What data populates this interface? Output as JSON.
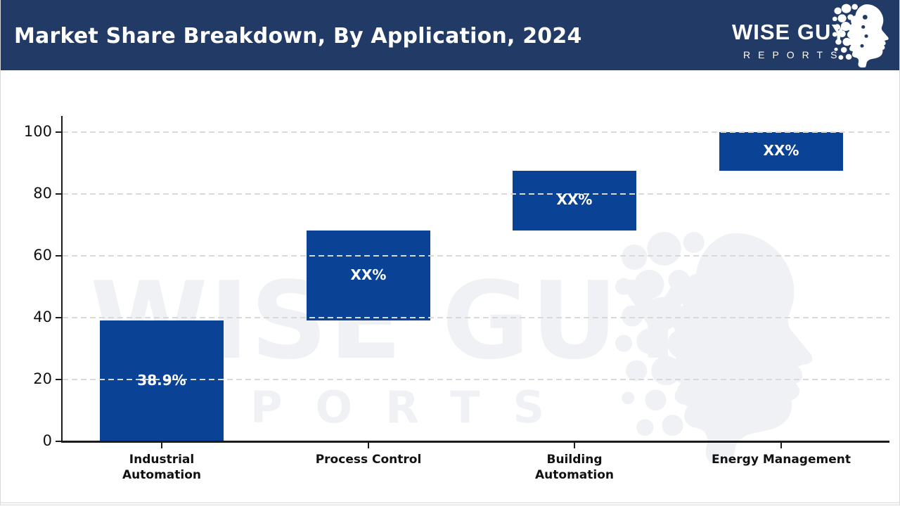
{
  "header": {
    "title": "Market Share Breakdown, By Application, 2024",
    "logo_line1": "WISE GUY",
    "logo_line2": "REPORTS"
  },
  "watermark": {
    "line1": "WISE GUY",
    "line2": "REPORTS"
  },
  "chart_data": {
    "type": "bar",
    "subtype": "floating-waterfall",
    "title": "Market Share Breakdown, By Application, 2024",
    "categories": [
      "Industrial\nAutomation",
      "Process Control",
      "Building\nAutomation",
      "Energy Management"
    ],
    "segments": [
      {
        "category": "Industrial Automation",
        "from": 0,
        "to": 38.9,
        "label": "38.9%"
      },
      {
        "category": "Process Control",
        "from": 38.9,
        "to": 68,
        "label": "XX%"
      },
      {
        "category": "Building Automation",
        "from": 68,
        "to": 87.5,
        "label": "XX%"
      },
      {
        "category": "Energy Management",
        "from": 87.5,
        "to": 100,
        "label": "XX%"
      }
    ],
    "ylim": [
      0,
      105
    ],
    "yticks": [
      0,
      20,
      40,
      60,
      80,
      100
    ],
    "grid": {
      "horizontal": true,
      "style": "dashed"
    },
    "legend": "none",
    "bar_label_color": "#FFFFFF"
  },
  "colors": {
    "header_bg": "#213A66",
    "bar_fill": "#0A4296",
    "axis": "#1B1B1B",
    "grid": "#D9D9D9",
    "watermark": "#EFF1F4",
    "panel_border": "#D9D9D9",
    "title_text": "#FFFFFF"
  }
}
